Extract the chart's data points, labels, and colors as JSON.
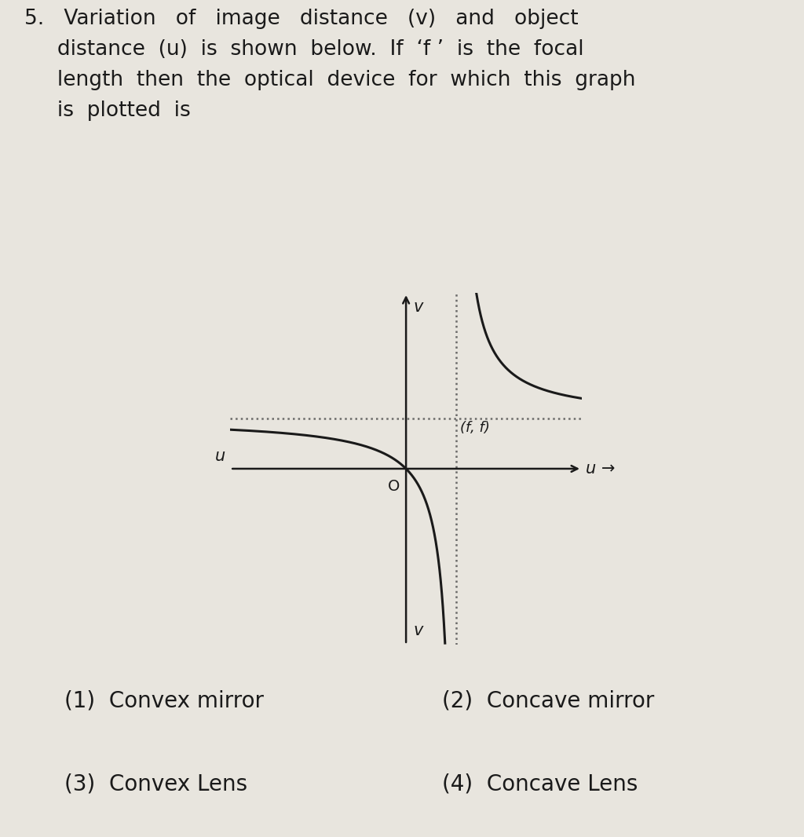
{
  "f": 1.0,
  "bg_color": "#e8e5de",
  "curve_color": "#1a1a1a",
  "axis_color": "#1a1a1a",
  "dotted_color": "#555555",
  "text_color": "#1a1a1a",
  "options": [
    "(1)  Convex mirror",
    "(2)  Concave mirror",
    "(3)  Convex Lens",
    "(4)  Concave Lens"
  ],
  "xlim": [
    -3.5,
    3.5
  ],
  "ylim": [
    -3.5,
    3.5
  ],
  "origin_label": "O",
  "point_label": "(f, f)",
  "xlabel_left": "u",
  "xlabel_right": "u →",
  "ylabel_top": "v",
  "ylabel_bottom": "v"
}
